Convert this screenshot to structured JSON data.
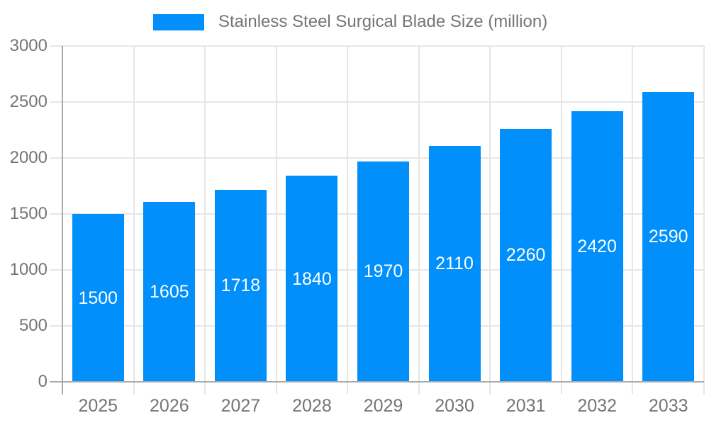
{
  "legend": {
    "label": "Stainless Steel Surgical Blade Size (million)"
  },
  "chart_data": {
    "type": "bar",
    "title": "Stainless Steel Surgical Blade Size (million)",
    "series_name": "Stainless Steel Surgical Blade Size (million)",
    "categories": [
      "2025",
      "2026",
      "2027",
      "2028",
      "2029",
      "2030",
      "2031",
      "2032",
      "2033"
    ],
    "values": [
      1500,
      1605,
      1718,
      1840,
      1970,
      2110,
      2260,
      2420,
      2590
    ],
    "value_labels": [
      "1500",
      "1605",
      "1718",
      "1840",
      "1970",
      "2110",
      "2260",
      "2420",
      "2590"
    ],
    "xlabel": "",
    "ylabel": "",
    "ylim": [
      0,
      3000
    ],
    "yticks": [
      0,
      500,
      1000,
      1500,
      2000,
      2500,
      3000
    ],
    "grid": true,
    "legend_position": "top-center",
    "colors": {
      "bar": "#008FFB",
      "grid_line": "#e6e6e6",
      "axis_line": "#a9a9a9",
      "axis_text": "#757575",
      "value_label_text": "#ffffff",
      "background": "#ffffff"
    }
  }
}
